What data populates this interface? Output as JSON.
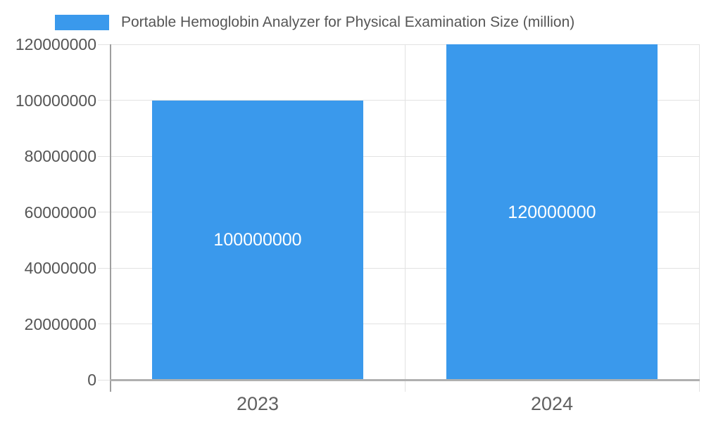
{
  "chart_data": {
    "type": "bar",
    "title": "Portable Hemoglobin Analyzer for Physical Examination Size (million)",
    "categories": [
      "2023",
      "2024"
    ],
    "series": [
      {
        "name": "Portable Hemoglobin Analyzer for Physical Examination Size (million)",
        "values": [
          100000000,
          120000000
        ],
        "data_labels": [
          "100000000",
          "120000000"
        ]
      }
    ],
    "xlabel": "",
    "ylabel": "",
    "ylim": [
      0,
      120000000
    ],
    "ytick_step": 20000000,
    "ytick_labels": [
      "0",
      "20000000",
      "40000000",
      "60000000",
      "80000000",
      "100000000",
      "120000000"
    ],
    "grid": true,
    "legend_position": "top"
  },
  "style": {
    "bar_color": "#3a99ec",
    "bar_label_color": "#ffffff",
    "legend_text_color": "#565656",
    "y_label_color": "#555555",
    "x_label_color": "#616161",
    "gridline_color": "#e2e2e2",
    "y_axis_line_color": "#9e9e9e",
    "x_axis_line_color": "#b0b0b0",
    "background_color": "#ffffff"
  }
}
